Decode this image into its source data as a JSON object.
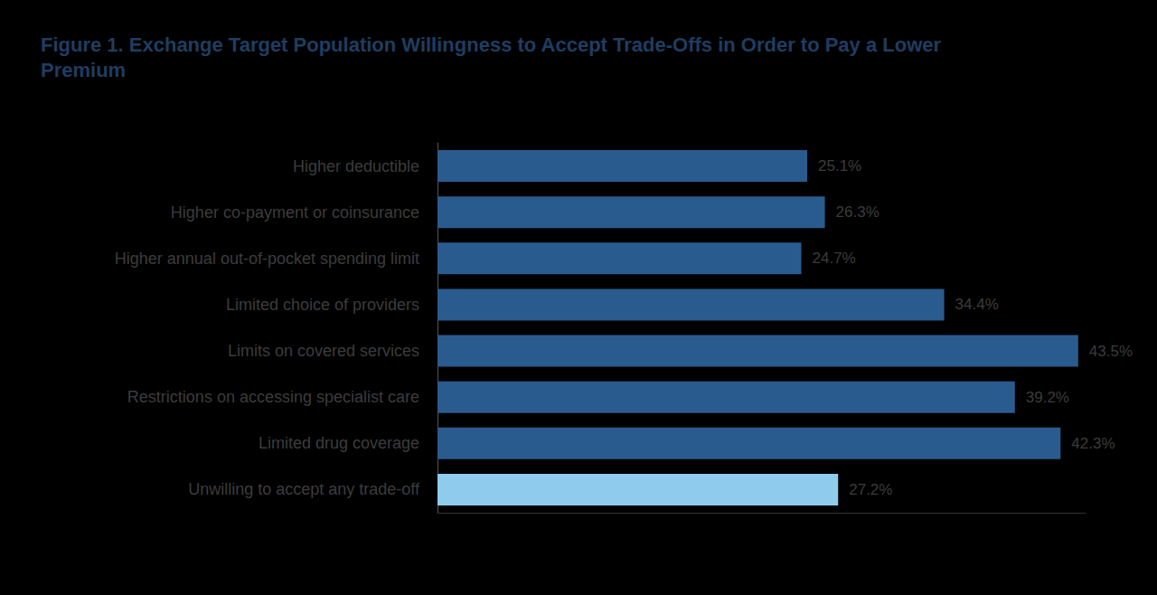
{
  "chart_data": {
    "type": "bar",
    "orientation": "horizontal",
    "title": "Figure 1. Exchange Target Population Willingness to Accept Trade-Offs in Order to Pay a Lower Premium",
    "categories": [
      "Higher deductible",
      "Higher co-payment or coinsurance",
      "Higher annual out-of-pocket spending limit",
      "Limited choice of providers",
      "Limits on covered services",
      "Restrictions on accessing specialist care",
      "Limited drug coverage",
      "Unwilling to accept any trade-off"
    ],
    "values": [
      25.1,
      26.3,
      24.7,
      34.4,
      43.5,
      39.2,
      42.3,
      27.2
    ],
    "value_labels": [
      "25.1%",
      "26.3%",
      "24.7%",
      "34.4%",
      "43.5%",
      "39.2%",
      "42.3%",
      "27.2%"
    ],
    "colors": [
      "#2a5b8e",
      "#2a5b8e",
      "#2a5b8e",
      "#2a5b8e",
      "#2a5b8e",
      "#2a5b8e",
      "#2a5b8e",
      "#8ecbec"
    ],
    "xlim": [
      0,
      44
    ],
    "grid": false,
    "data_labels": true,
    "tick_labels": "y"
  }
}
